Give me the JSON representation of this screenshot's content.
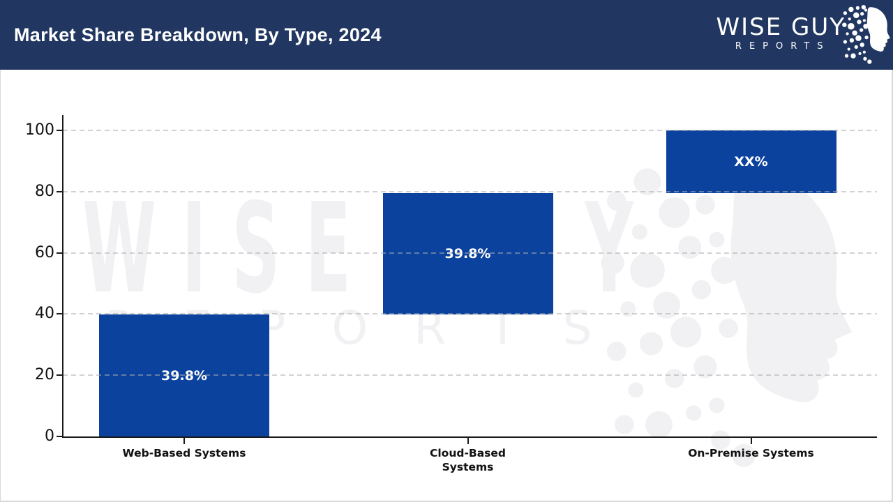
{
  "header": {
    "title": "Market Share Breakdown, By Type, 2024",
    "logo_line1": "WISE GUY",
    "logo_line2": "REPORTS"
  },
  "watermark": {
    "line1": "WISE GUY",
    "line2": "REPORTS"
  },
  "chart_data": {
    "type": "bar",
    "variant": "waterfall",
    "title": "Market Share Breakdown, By Type, 2024",
    "categories": [
      "Web-Based Systems",
      "Cloud-Based\nSystems",
      "On-Premise Systems"
    ],
    "series": [
      {
        "name": "Market Share (%)",
        "segments": [
          {
            "category": "Web-Based Systems",
            "start": 0,
            "end": 39.8,
            "label": "39.8%"
          },
          {
            "category": "Cloud-Based Systems",
            "start": 39.8,
            "end": 79.6,
            "label": "39.8%"
          },
          {
            "category": "On-Premise Systems",
            "start": 79.6,
            "end": 100,
            "label": "XX%"
          }
        ]
      }
    ],
    "yticks": [
      0,
      20,
      40,
      60,
      80,
      100
    ],
    "ylim": [
      0,
      105
    ],
    "xlabel": "",
    "ylabel": "",
    "legend": "none",
    "grid": "horizontal-dashed"
  },
  "colors": {
    "header_bg": "#213761",
    "bar": "#0b429e",
    "bar_label": "#ffffff",
    "axis": "#1a1a1a",
    "grid_dash": "#acacac",
    "watermark": "#f1f1f4",
    "edge_border": "#d9d9d9"
  }
}
